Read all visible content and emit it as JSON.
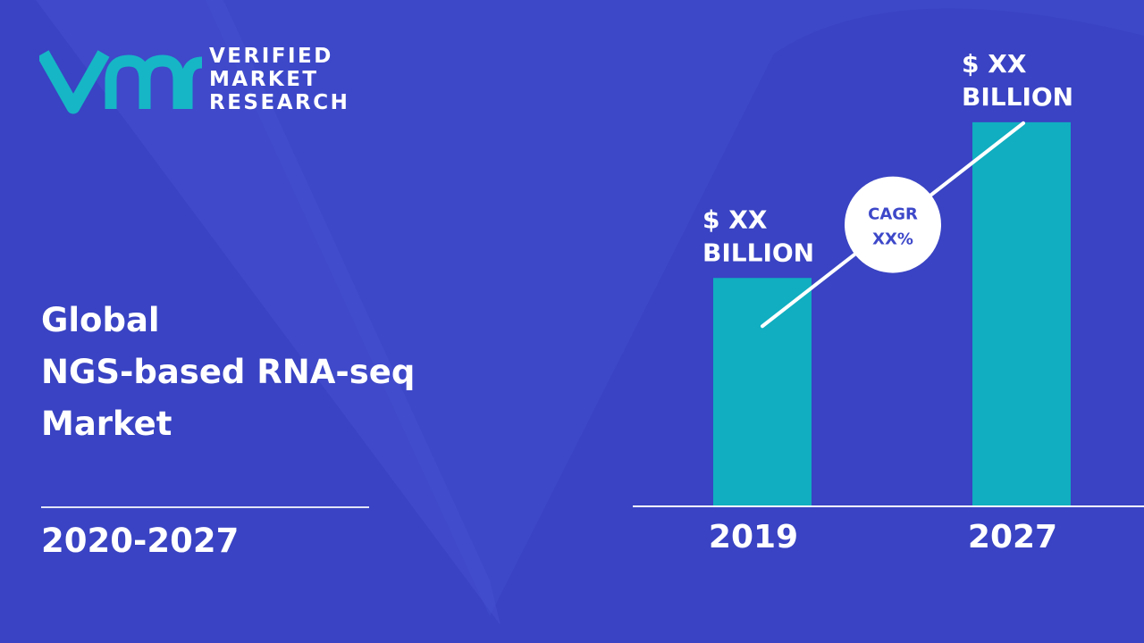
{
  "brand": {
    "logo_letters": "vmr",
    "name_lines": [
      "VERIFIED",
      "MARKET",
      "RESEARCH"
    ]
  },
  "title_lines": [
    "Global",
    "NGS-based RNA-seq",
    "Market"
  ],
  "period": "2020-2027",
  "colors": {
    "background": "#3d48c9",
    "background_shape": "#3640bd",
    "bar": "#10aec0",
    "logo": "#16b6c6",
    "cagr_text": "#3d48c9"
  },
  "chart_data": {
    "type": "bar",
    "categories": [
      "2019",
      "2027"
    ],
    "values": [
      2.2,
      3.7
    ],
    "ylim": [
      0,
      4
    ],
    "value_labels": [
      [
        "$ XX",
        "BILLION"
      ],
      [
        "$ XX",
        "BILLION"
      ]
    ],
    "annotation": {
      "lines": [
        "CAGR",
        "XX%"
      ]
    },
    "grid": false,
    "title": "",
    "xlabel": "",
    "ylabel": ""
  }
}
